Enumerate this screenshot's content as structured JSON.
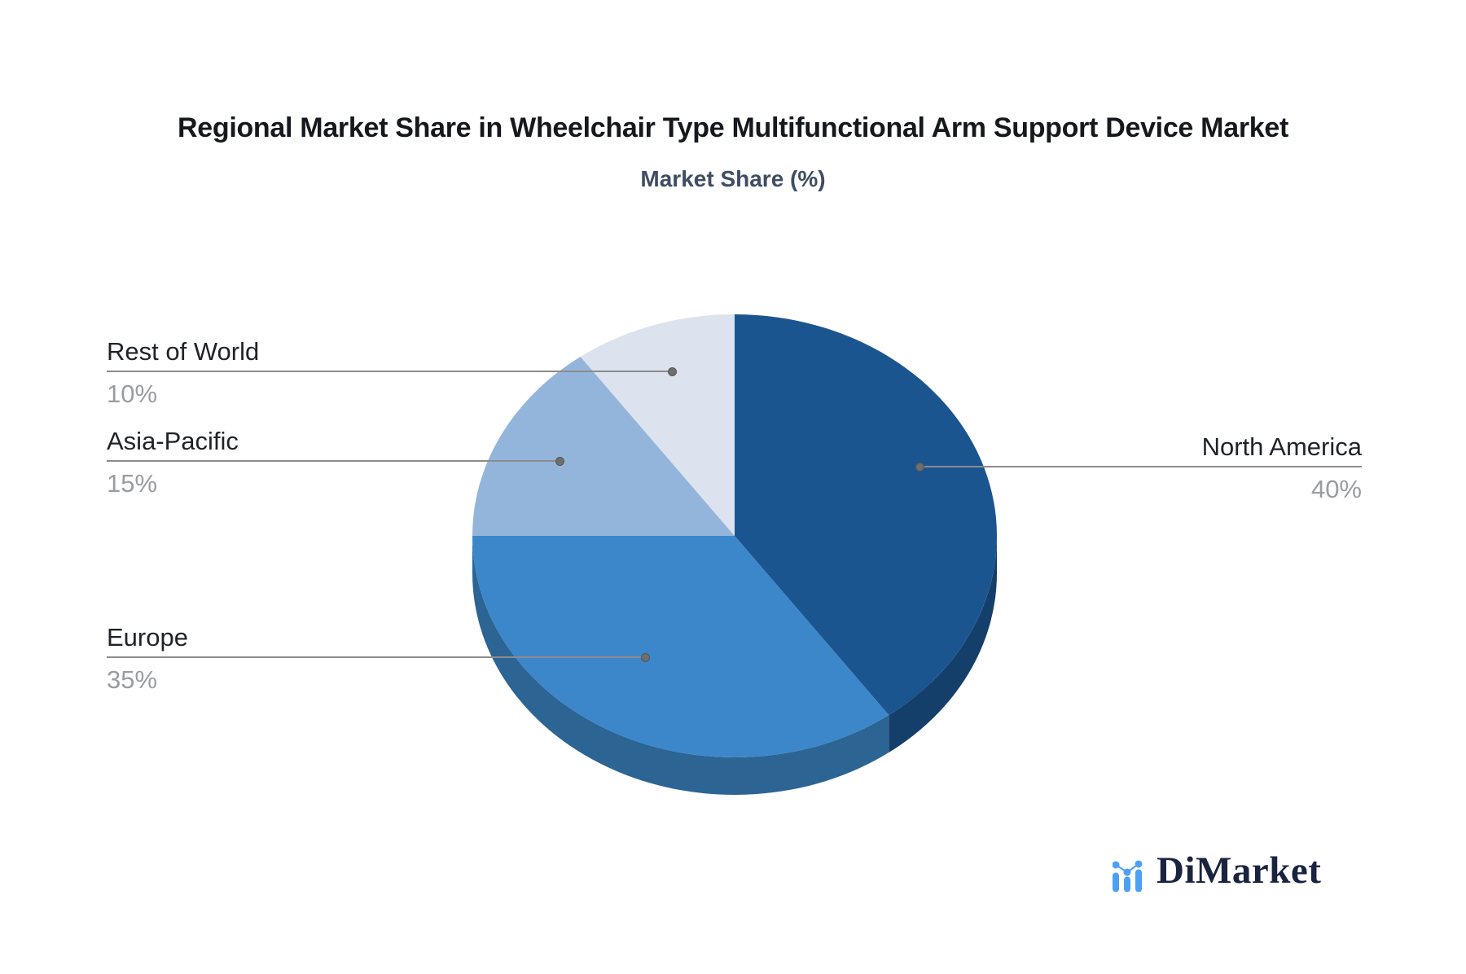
{
  "header": {
    "title": "Regional Market Share in Wheelchair Type Multifunctional Arm Support Device Market",
    "subtitle": "Market Share (%)"
  },
  "chart_data": {
    "type": "pie",
    "style": "3d",
    "title": "Regional Market Share in Wheelchair Type Multifunctional Arm Support Device Market",
    "subtitle": "Market Share (%)",
    "unit": "%",
    "start_angle_deg": 0,
    "direction": "clockwise",
    "legend_position": "callout-labels",
    "categories": [
      "North America",
      "Europe",
      "Asia-Pacific",
      "Rest of World"
    ],
    "values": [
      40,
      35,
      15,
      10
    ],
    "slices": [
      {
        "label": "North America",
        "value": 40,
        "pct_label": "40%",
        "color": "#1B5590",
        "side_color": "#153F6B"
      },
      {
        "label": "Europe",
        "value": 35,
        "pct_label": "35%",
        "color": "#3C86CA",
        "side_color": "#2C6494"
      },
      {
        "label": "Asia-Pacific",
        "value": 15,
        "pct_label": "15%",
        "color": "#94B5DB",
        "side_color": "#7FA0C6"
      },
      {
        "label": "Rest of World",
        "value": 10,
        "pct_label": "10%",
        "color": "#DCE3EE",
        "side_color": "#C3CDDD"
      }
    ],
    "label_text_color": "#1f2327",
    "pct_text_color": "#9a9ca0",
    "leader_line_color": "#8c8c8c"
  },
  "branding": {
    "logo_text": "DiMarket",
    "logo_icon": "bar-chart-sparkline-icon",
    "logo_icon_color": "#4BA0F5",
    "logo_text_color": "#1a2440"
  }
}
